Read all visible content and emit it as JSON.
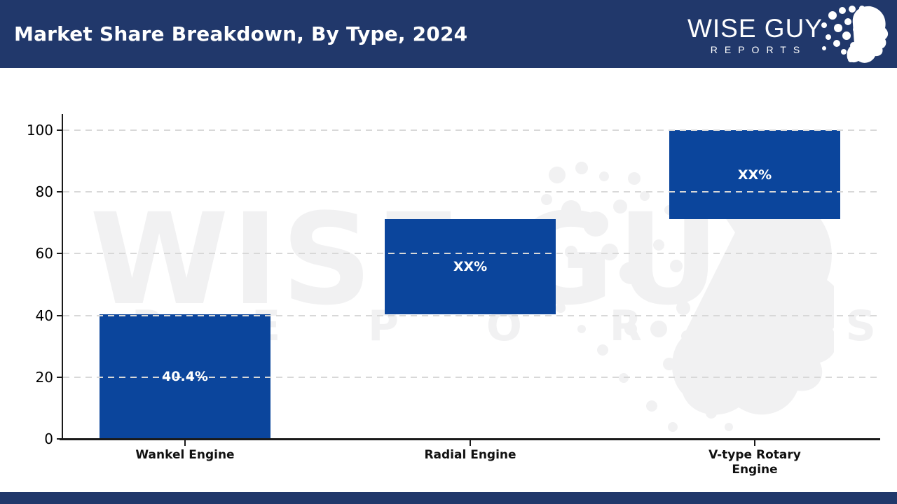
{
  "header": {
    "title": "Market Share Breakdown, By Type, 2024",
    "logo": {
      "line1": "WISE GUY",
      "line2": "REPORTS"
    }
  },
  "watermark": {
    "line1": "WISE GUY",
    "line2": "REPORTS"
  },
  "chart_data": {
    "type": "bar",
    "subtype": "floating-segment-waterfall",
    "title": "Market Share Breakdown, By Type, 2024",
    "categories": [
      "Wankel Engine",
      "Radial Engine",
      "V-type Rotary Engine"
    ],
    "segments": [
      {
        "category": "Wankel Engine",
        "start": 0,
        "end": 40.4,
        "label": "40.4%"
      },
      {
        "category": "Radial Engine",
        "start": 40.4,
        "end": 71.1,
        "label": "XX%"
      },
      {
        "category": "V-type Rotary Engine",
        "start": 71.1,
        "end": 100,
        "label": "XX%"
      }
    ],
    "yticks": [
      0,
      20,
      40,
      60,
      80,
      100
    ],
    "ylim": [
      0,
      100
    ],
    "xlabel": "",
    "ylabel": "",
    "grid": "dashed-horizontal",
    "legend": "none",
    "bar_color": "#0B459C"
  },
  "colors": {
    "header_bg": "#21386B",
    "footer_bg": "#21386B",
    "bar": "#0B459C",
    "grid": "#D8D8D8",
    "axis": "#1A1A1A",
    "watermark": "#F1F1F2",
    "title_text": "#FFFFFF"
  }
}
